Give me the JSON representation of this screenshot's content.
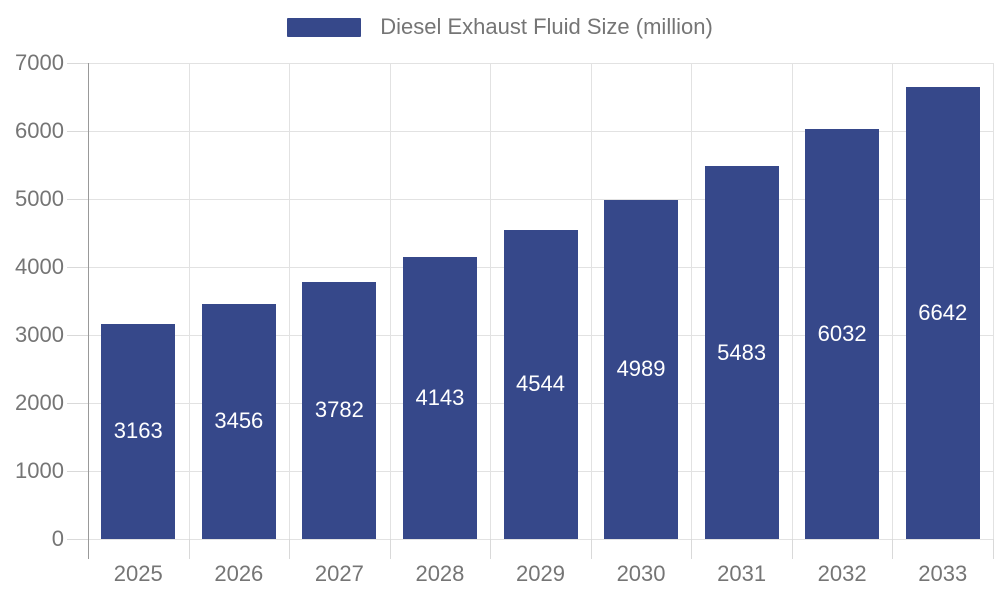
{
  "chart_data": {
    "type": "bar",
    "title": "Diesel Exhaust Fluid Size (million)",
    "legend": "Diesel Exhaust Fluid Size (million)",
    "categories": [
      "2025",
      "2026",
      "2027",
      "2028",
      "2029",
      "2030",
      "2031",
      "2032",
      "2033"
    ],
    "values": [
      3163,
      3456,
      3782,
      4143,
      4544,
      4989,
      5483,
      6032,
      6642
    ],
    "data_labels": [
      "3163",
      "3456",
      "3782",
      "4143",
      "4544",
      "4989",
      "5483",
      "6032",
      "6642"
    ],
    "xlabel": "",
    "ylabel": "",
    "ylim": [
      0,
      7000
    ],
    "ytick_step": 1000,
    "ytick_labels": [
      "0",
      "1000",
      "2000",
      "3000",
      "4000",
      "5000",
      "6000",
      "7000"
    ],
    "grid": true,
    "legend_position": "top-center",
    "colors": {
      "bar": "#36488a",
      "bar_label_text": "#ffffff",
      "axis_text": "#757575",
      "grid_line": "#e2e2e2",
      "tick_line": "#d9d9d9",
      "axis_line": "#999999",
      "background": "#ffffff"
    }
  }
}
